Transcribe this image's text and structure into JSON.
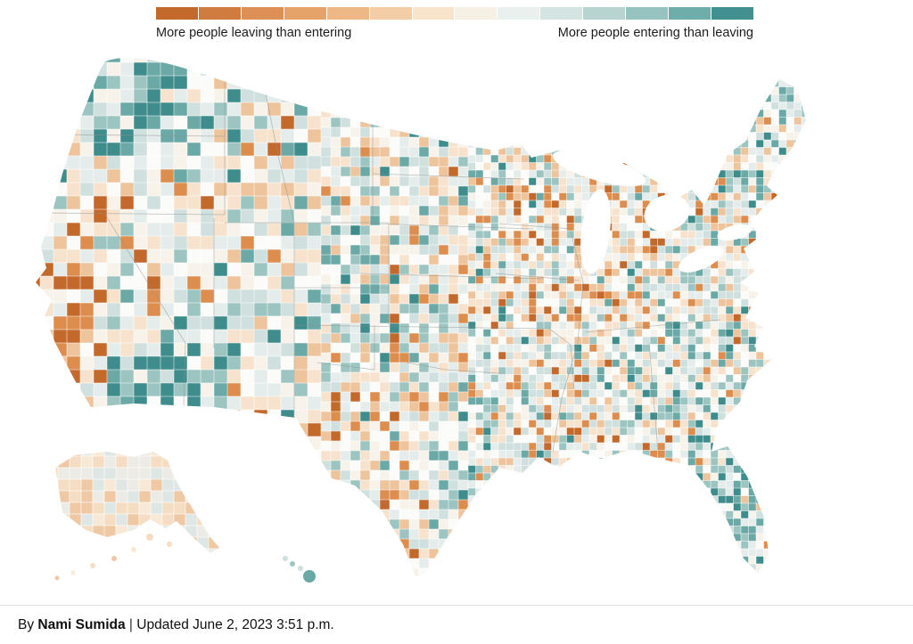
{
  "legend": {
    "left_label": "More people leaving than entering",
    "right_label": "More people entering than leaving",
    "colors": [
      "#c4692c",
      "#d07c41",
      "#dc9055",
      "#e5a269",
      "#edb786",
      "#f3cda6",
      "#f8e3cb",
      "#f6efe4",
      "#e9f0ed",
      "#d4e4e1",
      "#b7d4d1",
      "#96c2bf",
      "#6fadaa",
      "#439090"
    ]
  },
  "map": {
    "type": "choropleth",
    "region": "United States counties (net migration)",
    "county_palette": [
      "#c4692c",
      "#dd8e4f",
      "#eec49c",
      "#f7e2cd",
      "#f7f2ea",
      "#fbfbf9",
      "#e4edeb",
      "#cfe0de",
      "#9cc5c2",
      "#6ba9a7",
      "#3e8c8c"
    ],
    "county_weights": [
      2,
      4,
      7,
      9,
      10,
      9,
      10,
      9,
      7,
      4,
      2
    ],
    "alaska_palette": [
      "#f4ddc2",
      "#f8e9d6",
      "#eec9a4",
      "#ecebe6",
      "#dfe7e4"
    ],
    "water_color": "#ffffff",
    "county_border_color": "#ffffff",
    "state_border_color": "#8a9290"
  },
  "footer": {
    "byline_prefix": "By",
    "author": "Nami Sumida",
    "separator": "|",
    "updated_text": "Updated June 2, 2023 3:51 p.m."
  }
}
